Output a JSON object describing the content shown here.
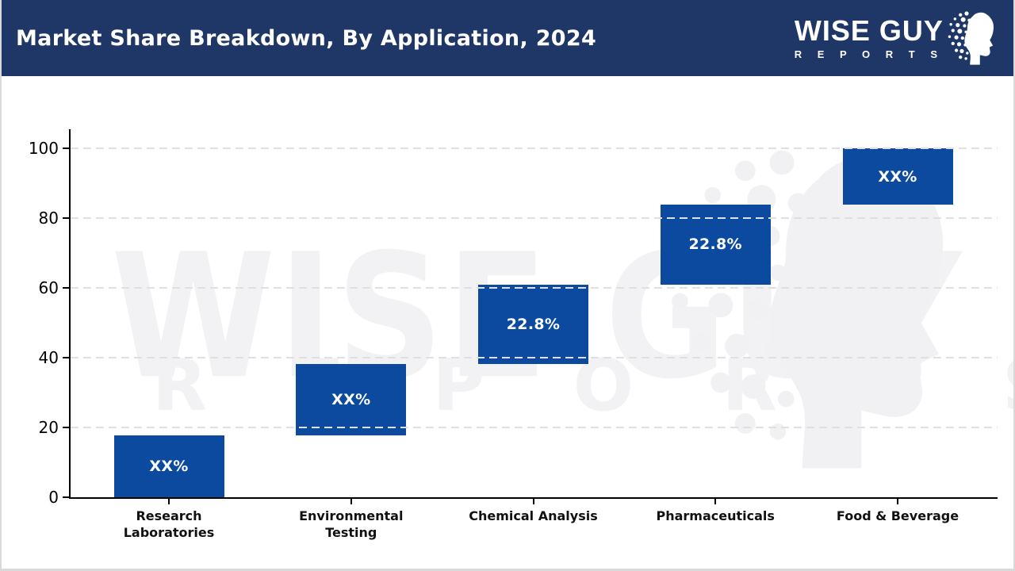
{
  "header": {
    "title": "Market Share Breakdown, By Application, 2024",
    "background_color": "#1f3766",
    "logo": {
      "line1": "WISE GUY",
      "line2": "R E P O R T S"
    }
  },
  "watermark": {
    "line1": "WISE GUY",
    "line2": "R E P O R T S"
  },
  "chart_data": {
    "type": "bar",
    "variant": "waterfall",
    "title": "Market Share Breakdown, By Application, 2024",
    "xlabel": "",
    "ylabel": "",
    "ylim": [
      0,
      105.5
    ],
    "yticks": [
      0,
      20,
      40,
      60,
      80,
      100
    ],
    "grid": "horizontal dashed, drawn above bars",
    "bar_color": "#0b4a9e",
    "value_label_color": "#ffffff",
    "categories": [
      "Research Laboratories",
      "Environmental Testing",
      "Chemical Analysis",
      "Pharmaceuticals",
      "Food & Beverage"
    ],
    "segments": [
      {
        "category": "Research Laboratories",
        "label_lines": [
          "Research",
          "Laboratories"
        ],
        "start": 0,
        "end": 17.8,
        "value_label": "XX%"
      },
      {
        "category": "Environmental Testing",
        "label_lines": [
          "Environmental",
          "Testing"
        ],
        "start": 17.8,
        "end": 38.2,
        "value_label": "XX%"
      },
      {
        "category": "Chemical Analysis",
        "label_lines": [
          "Chemical Analysis"
        ],
        "start": 38.2,
        "end": 61.0,
        "value_label": "22.8%"
      },
      {
        "category": "Pharmaceuticals",
        "label_lines": [
          "Pharmaceuticals"
        ],
        "start": 61.0,
        "end": 83.8,
        "value_label": "22.8%"
      },
      {
        "category": "Food & Beverage",
        "label_lines": [
          "Food & Beverage"
        ],
        "start": 83.8,
        "end": 100.0,
        "value_label": "XX%"
      }
    ]
  }
}
